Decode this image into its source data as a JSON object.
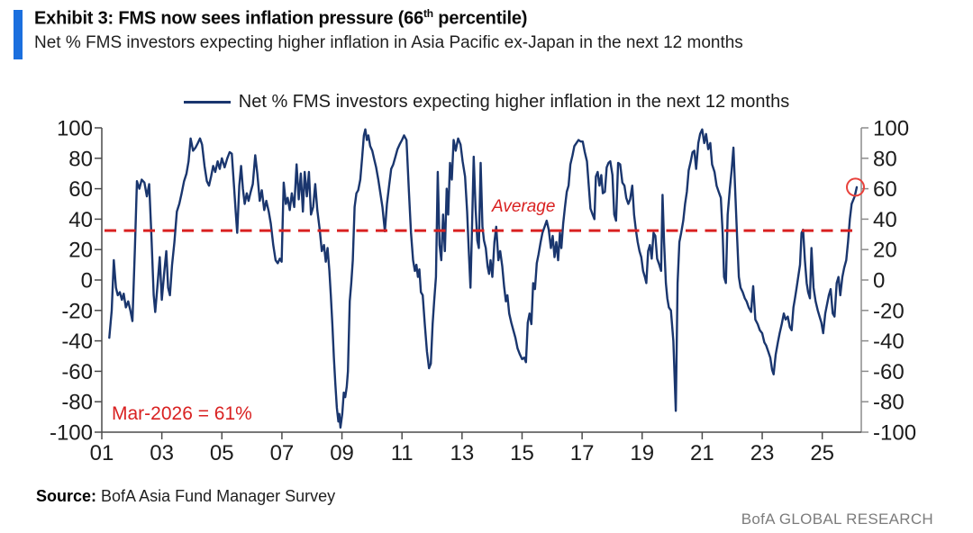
{
  "header": {
    "title_prefix": "Exhibit 3: FMS now sees inflation pressure (66",
    "title_sup": "th",
    "title_suffix": " percentile)",
    "subtitle": "Net % FMS investors expecting higher inflation in Asia Pacific ex-Japan in the next 12 months"
  },
  "legend": {
    "label": "Net % FMS investors expecting higher inflation in the next 12 months"
  },
  "chart_data": {
    "type": "line",
    "title": "Net % FMS investors expecting higher inflation in the next 12 months",
    "xlabel": "",
    "ylabel": "Net %",
    "units": "%",
    "grid": false,
    "legend_position": "top-center",
    "ylim": [
      -100,
      100
    ],
    "xlim_years": [
      2001,
      2026.6
    ],
    "y_axis": {
      "ticks": [
        100,
        80,
        60,
        40,
        20,
        0,
        -20,
        -40,
        -60,
        -80,
        -100
      ]
    },
    "x_axis": {
      "tick_years": [
        2001,
        2003,
        2005,
        2007,
        2009,
        2011,
        2013,
        2015,
        2017,
        2019,
        2021,
        2023,
        2025
      ],
      "tick_labels": [
        "01",
        "03",
        "05",
        "07",
        "09",
        "11",
        "13",
        "15",
        "17",
        "19",
        "21",
        "23",
        "25"
      ]
    },
    "average_line": {
      "value": 32.5,
      "label": "Average",
      "style": "dashed-red"
    },
    "endpoint": {
      "label": "Mar-2026 = 61%",
      "year": 2026.15,
      "value": 61
    },
    "points": [
      [
        2001.25,
        -38
      ],
      [
        2001.33,
        -20
      ],
      [
        2001.4,
        13
      ],
      [
        2001.47,
        -5
      ],
      [
        2001.53,
        -10
      ],
      [
        2001.6,
        -8
      ],
      [
        2001.67,
        -13
      ],
      [
        2001.73,
        -9
      ],
      [
        2001.8,
        -18
      ],
      [
        2001.88,
        -14
      ],
      [
        2001.95,
        -20
      ],
      [
        2002.02,
        -27
      ],
      [
        2002.1,
        20
      ],
      [
        2002.17,
        65
      ],
      [
        2002.25,
        60
      ],
      [
        2002.33,
        66
      ],
      [
        2002.42,
        64
      ],
      [
        2002.5,
        55
      ],
      [
        2002.58,
        63
      ],
      [
        2002.65,
        30
      ],
      [
        2002.73,
        -10
      ],
      [
        2002.78,
        -21
      ],
      [
        2002.85,
        -5
      ],
      [
        2002.93,
        15
      ],
      [
        2003.0,
        -13
      ],
      [
        2003.08,
        5
      ],
      [
        2003.15,
        19
      ],
      [
        2003.21,
        -5
      ],
      [
        2003.27,
        -10
      ],
      [
        2003.34,
        10
      ],
      [
        2003.42,
        25
      ],
      [
        2003.5,
        45
      ],
      [
        2003.58,
        50
      ],
      [
        2003.66,
        57
      ],
      [
        2003.74,
        65
      ],
      [
        2003.82,
        70
      ],
      [
        2003.89,
        78
      ],
      [
        2003.96,
        93
      ],
      [
        2004.04,
        85
      ],
      [
        2004.12,
        87
      ],
      [
        2004.2,
        90
      ],
      [
        2004.27,
        93
      ],
      [
        2004.34,
        89
      ],
      [
        2004.42,
        75
      ],
      [
        2004.5,
        65
      ],
      [
        2004.57,
        62
      ],
      [
        2004.64,
        68
      ],
      [
        2004.71,
        75
      ],
      [
        2004.78,
        71
      ],
      [
        2004.86,
        78
      ],
      [
        2004.93,
        73
      ],
      [
        2005.0,
        80
      ],
      [
        2005.09,
        74
      ],
      [
        2005.18,
        80
      ],
      [
        2005.26,
        84
      ],
      [
        2005.33,
        83
      ],
      [
        2005.4,
        63
      ],
      [
        2005.46,
        45
      ],
      [
        2005.51,
        31
      ],
      [
        2005.58,
        62
      ],
      [
        2005.64,
        75
      ],
      [
        2005.7,
        60
      ],
      [
        2005.76,
        50
      ],
      [
        2005.83,
        57
      ],
      [
        2005.89,
        52
      ],
      [
        2005.96,
        58
      ],
      [
        2006.03,
        63
      ],
      [
        2006.11,
        82
      ],
      [
        2006.18,
        70
      ],
      [
        2006.26,
        52
      ],
      [
        2006.33,
        59
      ],
      [
        2006.41,
        46
      ],
      [
        2006.48,
        52
      ],
      [
        2006.56,
        45
      ],
      [
        2006.63,
        37
      ],
      [
        2006.71,
        23
      ],
      [
        2006.79,
        13
      ],
      [
        2006.86,
        11
      ],
      [
        2006.93,
        14
      ],
      [
        2006.99,
        12
      ],
      [
        2007.06,
        64
      ],
      [
        2007.13,
        50
      ],
      [
        2007.19,
        54
      ],
      [
        2007.26,
        46
      ],
      [
        2007.33,
        57
      ],
      [
        2007.41,
        48
      ],
      [
        2007.49,
        76
      ],
      [
        2007.56,
        53
      ],
      [
        2007.63,
        70
      ],
      [
        2007.7,
        45
      ],
      [
        2007.76,
        71
      ],
      [
        2007.83,
        55
      ],
      [
        2007.9,
        71
      ],
      [
        2007.97,
        43
      ],
      [
        2008.04,
        48
      ],
      [
        2008.11,
        63
      ],
      [
        2008.18,
        46
      ],
      [
        2008.26,
        33
      ],
      [
        2008.33,
        19
      ],
      [
        2008.4,
        23
      ],
      [
        2008.46,
        12
      ],
      [
        2008.52,
        21
      ],
      [
        2008.58,
        6
      ],
      [
        2008.63,
        -10
      ],
      [
        2008.68,
        -29
      ],
      [
        2008.73,
        -51
      ],
      [
        2008.78,
        -68
      ],
      [
        2008.83,
        -84
      ],
      [
        2008.88,
        -93
      ],
      [
        2008.91,
        -88
      ],
      [
        2008.95,
        -97
      ],
      [
        2009.01,
        -88
      ],
      [
        2009.06,
        -74
      ],
      [
        2009.11,
        -77
      ],
      [
        2009.16,
        -70
      ],
      [
        2009.2,
        -60
      ],
      [
        2009.26,
        -14
      ],
      [
        2009.31,
        -2
      ],
      [
        2009.36,
        13
      ],
      [
        2009.42,
        48
      ],
      [
        2009.48,
        57
      ],
      [
        2009.54,
        59
      ],
      [
        2009.61,
        66
      ],
      [
        2009.67,
        80
      ],
      [
        2009.73,
        95
      ],
      [
        2009.78,
        99
      ],
      [
        2009.83,
        92
      ],
      [
        2009.88,
        95
      ],
      [
        2009.94,
        88
      ],
      [
        2010.01,
        85
      ],
      [
        2010.08,
        79
      ],
      [
        2010.14,
        74
      ],
      [
        2010.21,
        66
      ],
      [
        2010.28,
        57
      ],
      [
        2010.35,
        48
      ],
      [
        2010.43,
        32
      ],
      [
        2010.5,
        50
      ],
      [
        2010.57,
        62
      ],
      [
        2010.64,
        73
      ],
      [
        2010.71,
        76
      ],
      [
        2010.78,
        81
      ],
      [
        2010.85,
        86
      ],
      [
        2010.92,
        89
      ],
      [
        2011.0,
        92
      ],
      [
        2011.07,
        95
      ],
      [
        2011.15,
        92
      ],
      [
        2011.23,
        58
      ],
      [
        2011.3,
        31
      ],
      [
        2011.37,
        13
      ],
      [
        2011.43,
        6
      ],
      [
        2011.48,
        10
      ],
      [
        2011.53,
        2
      ],
      [
        2011.58,
        7
      ],
      [
        2011.63,
        -8
      ],
      [
        2011.69,
        -10
      ],
      [
        2011.76,
        -29
      ],
      [
        2011.83,
        -47
      ],
      [
        2011.9,
        -58
      ],
      [
        2011.96,
        -55
      ],
      [
        2012.02,
        -29
      ],
      [
        2012.07,
        -14
      ],
      [
        2012.13,
        2
      ],
      [
        2012.19,
        71
      ],
      [
        2012.25,
        23
      ],
      [
        2012.31,
        13
      ],
      [
        2012.37,
        43
      ],
      [
        2012.43,
        19
      ],
      [
        2012.49,
        60
      ],
      [
        2012.54,
        43
      ],
      [
        2012.6,
        77
      ],
      [
        2012.66,
        66
      ],
      [
        2012.72,
        92
      ],
      [
        2012.79,
        85
      ],
      [
        2012.87,
        93
      ],
      [
        2012.95,
        89
      ],
      [
        2013.02,
        78
      ],
      [
        2013.1,
        68
      ],
      [
        2013.17,
        45
      ],
      [
        2013.22,
        21
      ],
      [
        2013.28,
        -5
      ],
      [
        2013.33,
        31
      ],
      [
        2013.39,
        81
      ],
      [
        2013.45,
        48
      ],
      [
        2013.51,
        26
      ],
      [
        2013.56,
        21
      ],
      [
        2013.62,
        77
      ],
      [
        2013.68,
        35
      ],
      [
        2013.73,
        26
      ],
      [
        2013.79,
        21
      ],
      [
        2013.85,
        9
      ],
      [
        2013.9,
        4
      ],
      [
        2013.95,
        13
      ],
      [
        2014.01,
        2
      ],
      [
        2014.08,
        25
      ],
      [
        2014.14,
        35
      ],
      [
        2014.21,
        13
      ],
      [
        2014.27,
        19
      ],
      [
        2014.34,
        9
      ],
      [
        2014.4,
        -4
      ],
      [
        2014.46,
        -14
      ],
      [
        2014.51,
        -10
      ],
      [
        2014.57,
        -22
      ],
      [
        2014.64,
        -28
      ],
      [
        2014.71,
        -33
      ],
      [
        2014.78,
        -38
      ],
      [
        2014.85,
        -45
      ],
      [
        2014.93,
        -49
      ],
      [
        2015.0,
        -52
      ],
      [
        2015.07,
        -51
      ],
      [
        2015.13,
        -54
      ],
      [
        2015.19,
        -28
      ],
      [
        2015.25,
        -22
      ],
      [
        2015.31,
        -29
      ],
      [
        2015.37,
        -2
      ],
      [
        2015.43,
        -6
      ],
      [
        2015.49,
        11
      ],
      [
        2015.55,
        17
      ],
      [
        2015.62,
        25
      ],
      [
        2015.68,
        31
      ],
      [
        2015.75,
        35
      ],
      [
        2015.82,
        39
      ],
      [
        2015.89,
        33
      ],
      [
        2015.96,
        21
      ],
      [
        2016.02,
        29
      ],
      [
        2016.08,
        15
      ],
      [
        2016.14,
        25
      ],
      [
        2016.2,
        13
      ],
      [
        2016.26,
        31
      ],
      [
        2016.31,
        21
      ],
      [
        2016.37,
        37
      ],
      [
        2016.43,
        48
      ],
      [
        2016.49,
        58
      ],
      [
        2016.55,
        62
      ],
      [
        2016.61,
        76
      ],
      [
        2016.68,
        82
      ],
      [
        2016.74,
        88
      ],
      [
        2016.81,
        90
      ],
      [
        2016.88,
        92
      ],
      [
        2016.95,
        91
      ],
      [
        2017.02,
        91
      ],
      [
        2017.09,
        84
      ],
      [
        2017.16,
        78
      ],
      [
        2017.22,
        62
      ],
      [
        2017.28,
        47
      ],
      [
        2017.35,
        43
      ],
      [
        2017.41,
        40
      ],
      [
        2017.46,
        68
      ],
      [
        2017.52,
        71
      ],
      [
        2017.58,
        62
      ],
      [
        2017.64,
        69
      ],
      [
        2017.69,
        57
      ],
      [
        2017.76,
        58
      ],
      [
        2017.82,
        74
      ],
      [
        2017.88,
        77
      ],
      [
        2017.94,
        78
      ],
      [
        2018.01,
        69
      ],
      [
        2018.07,
        43
      ],
      [
        2018.13,
        39
      ],
      [
        2018.2,
        77
      ],
      [
        2018.27,
        76
      ],
      [
        2018.34,
        64
      ],
      [
        2018.41,
        62
      ],
      [
        2018.47,
        54
      ],
      [
        2018.54,
        50
      ],
      [
        2018.6,
        53
      ],
      [
        2018.67,
        62
      ],
      [
        2018.73,
        43
      ],
      [
        2018.79,
        33
      ],
      [
        2018.85,
        25
      ],
      [
        2018.91,
        19
      ],
      [
        2018.97,
        15
      ],
      [
        2019.03,
        6
      ],
      [
        2019.09,
        2
      ],
      [
        2019.14,
        -2
      ],
      [
        2019.2,
        19
      ],
      [
        2019.26,
        23
      ],
      [
        2019.32,
        14
      ],
      [
        2019.38,
        31
      ],
      [
        2019.44,
        29
      ],
      [
        2019.5,
        14
      ],
      [
        2019.57,
        10
      ],
      [
        2019.63,
        6
      ],
      [
        2019.68,
        56
      ],
      [
        2019.73,
        25
      ],
      [
        2019.79,
        -2
      ],
      [
        2019.84,
        -12
      ],
      [
        2019.89,
        -18
      ],
      [
        2019.96,
        -20
      ],
      [
        2020.04,
        -40
      ],
      [
        2020.12,
        -86
      ],
      [
        2020.18,
        -2
      ],
      [
        2020.24,
        25
      ],
      [
        2020.3,
        31
      ],
      [
        2020.37,
        39
      ],
      [
        2020.43,
        50
      ],
      [
        2020.49,
        58
      ],
      [
        2020.55,
        72
      ],
      [
        2020.62,
        78
      ],
      [
        2020.68,
        84
      ],
      [
        2020.74,
        85
      ],
      [
        2020.8,
        73
      ],
      [
        2020.87,
        90
      ],
      [
        2020.93,
        96
      ],
      [
        2021.0,
        99
      ],
      [
        2021.07,
        90
      ],
      [
        2021.13,
        96
      ],
      [
        2021.2,
        86
      ],
      [
        2021.27,
        90
      ],
      [
        2021.33,
        76
      ],
      [
        2021.41,
        71
      ],
      [
        2021.48,
        62
      ],
      [
        2021.55,
        58
      ],
      [
        2021.62,
        54
      ],
      [
        2021.68,
        31
      ],
      [
        2021.73,
        2
      ],
      [
        2021.79,
        -2
      ],
      [
        2021.85,
        43
      ],
      [
        2021.92,
        60
      ],
      [
        2021.98,
        72
      ],
      [
        2022.04,
        87
      ],
      [
        2022.1,
        58
      ],
      [
        2022.16,
        29
      ],
      [
        2022.22,
        2
      ],
      [
        2022.28,
        -5
      ],
      [
        2022.35,
        -8
      ],
      [
        2022.42,
        -12
      ],
      [
        2022.48,
        -14
      ],
      [
        2022.55,
        -18
      ],
      [
        2022.63,
        -21
      ],
      [
        2022.7,
        -4
      ],
      [
        2022.77,
        -26
      ],
      [
        2022.85,
        -29
      ],
      [
        2022.92,
        -33
      ],
      [
        2023.0,
        -35
      ],
      [
        2023.07,
        -41
      ],
      [
        2023.13,
        -43
      ],
      [
        2023.2,
        -47
      ],
      [
        2023.27,
        -51
      ],
      [
        2023.33,
        -59
      ],
      [
        2023.38,
        -62
      ],
      [
        2023.45,
        -49
      ],
      [
        2023.52,
        -41
      ],
      [
        2023.58,
        -35
      ],
      [
        2023.65,
        -29
      ],
      [
        2023.72,
        -22
      ],
      [
        2023.78,
        -26
      ],
      [
        2023.85,
        -24
      ],
      [
        2023.92,
        -31
      ],
      [
        2023.98,
        -33
      ],
      [
        2024.04,
        -18
      ],
      [
        2024.09,
        -12
      ],
      [
        2024.14,
        -6
      ],
      [
        2024.2,
        2
      ],
      [
        2024.26,
        10
      ],
      [
        2024.31,
        31
      ],
      [
        2024.36,
        33
      ],
      [
        2024.42,
        13
      ],
      [
        2024.48,
        -2
      ],
      [
        2024.53,
        -8
      ],
      [
        2024.59,
        -12
      ],
      [
        2024.64,
        21
      ],
      [
        2024.71,
        -5
      ],
      [
        2024.78,
        -14
      ],
      [
        2024.85,
        -20
      ],
      [
        2024.91,
        -24
      ],
      [
        2024.97,
        -28
      ],
      [
        2025.03,
        -35
      ],
      [
        2025.1,
        -22
      ],
      [
        2025.16,
        -16
      ],
      [
        2025.22,
        -10
      ],
      [
        2025.28,
        -6
      ],
      [
        2025.35,
        -22
      ],
      [
        2025.41,
        -24
      ],
      [
        2025.48,
        -2
      ],
      [
        2025.54,
        2
      ],
      [
        2025.6,
        -10
      ],
      [
        2025.67,
        2
      ],
      [
        2025.73,
        8
      ],
      [
        2025.8,
        13
      ],
      [
        2025.86,
        25
      ],
      [
        2025.92,
        40
      ],
      [
        2025.98,
        50
      ],
      [
        2026.08,
        55
      ],
      [
        2026.15,
        61
      ]
    ]
  },
  "footer": {
    "source_label": "Source:",
    "source_text": " BofA Asia Fund Manager Survey",
    "brand": "BofA GLOBAL RESEARCH"
  },
  "colors": {
    "line_navy": "#1a366e",
    "accent_red": "#d92121",
    "circle_red": "#e8423c",
    "exhibit_bar_blue": "#1b6fde",
    "axis_dark": "#4a4a4a",
    "axis_gray": "#8c8c8c",
    "text_dark": "#1c1c1c",
    "brand_gray": "#7c7c7c"
  }
}
